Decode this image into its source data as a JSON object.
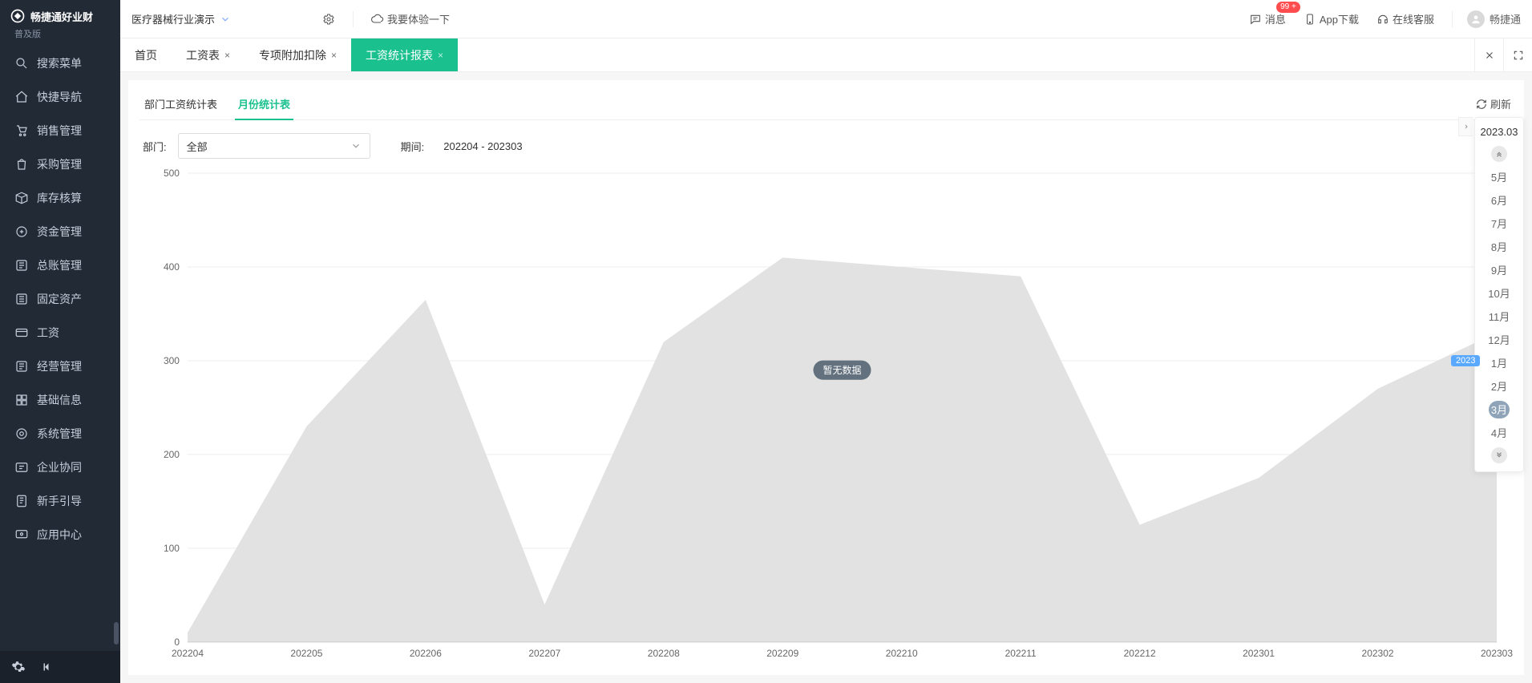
{
  "brand": {
    "name": "畅捷通好业财",
    "edition": "普及版"
  },
  "topbar": {
    "org_name": "医疗器械行业演示",
    "try_label": "我要体验一下",
    "msg_label": "消息",
    "msg_badge": "99 +",
    "app_download": "App下载",
    "support": "在线客服",
    "user_name": "畅捷通"
  },
  "sidebar": {
    "items": [
      {
        "label": "搜索菜单",
        "icon": "search"
      },
      {
        "label": "快捷导航",
        "icon": "home"
      },
      {
        "label": "销售管理",
        "icon": "cart"
      },
      {
        "label": "采购管理",
        "icon": "bag"
      },
      {
        "label": "库存核算",
        "icon": "box"
      },
      {
        "label": "资金管理",
        "icon": "coin"
      },
      {
        "label": "总账管理",
        "icon": "ledger"
      },
      {
        "label": "固定资产",
        "icon": "asset"
      },
      {
        "label": "工资",
        "icon": "wallet"
      },
      {
        "label": "经营管理",
        "icon": "report"
      },
      {
        "label": "基础信息",
        "icon": "grid"
      },
      {
        "label": "系统管理",
        "icon": "gear-ring"
      },
      {
        "label": "企业协同",
        "icon": "collab"
      },
      {
        "label": "新手引导",
        "icon": "guide"
      },
      {
        "label": "应用中心",
        "icon": "apps"
      }
    ]
  },
  "tabs": [
    {
      "label": "首页",
      "closable": false
    },
    {
      "label": "工资表",
      "closable": true
    },
    {
      "label": "专项附加扣除",
      "closable": true
    },
    {
      "label": "工资统计报表",
      "closable": true,
      "active": true
    }
  ],
  "subtabs": [
    {
      "label": "部门工资统计表",
      "active": false
    },
    {
      "label": "月份统计表",
      "active": true
    }
  ],
  "refresh_label": "刷新",
  "filter": {
    "dept_label": "部门:",
    "dept_value": "全部",
    "period_label": "期间:",
    "period_value": "202204 - 202303"
  },
  "chart": {
    "type": "area",
    "no_data_label": "暂无数据",
    "y_ticks": [
      0,
      100,
      200,
      300,
      400,
      500
    ],
    "ylim": [
      0,
      500
    ],
    "x_labels": [
      "202204",
      "202205",
      "202206",
      "202207",
      "202208",
      "202209",
      "202210",
      "202211",
      "202212",
      "202301",
      "202302",
      "202303"
    ],
    "values": [
      10,
      230,
      365,
      40,
      320,
      410,
      400,
      390,
      125,
      175,
      270,
      330
    ],
    "area_color": "#dfdfdf",
    "grid_color": "#eeeeee",
    "axis_text_color": "#666666",
    "plot_bg": "#ffffff",
    "label_fontsize": 12
  },
  "date_rail": {
    "current": "2023.03",
    "months": [
      "5月",
      "6月",
      "7月",
      "8月",
      "9月",
      "10月",
      "11月",
      "12月",
      "1月",
      "2月",
      "3月",
      "4月"
    ],
    "year_marker_index": 8,
    "year_marker_label": "2023",
    "active_index": 10
  }
}
